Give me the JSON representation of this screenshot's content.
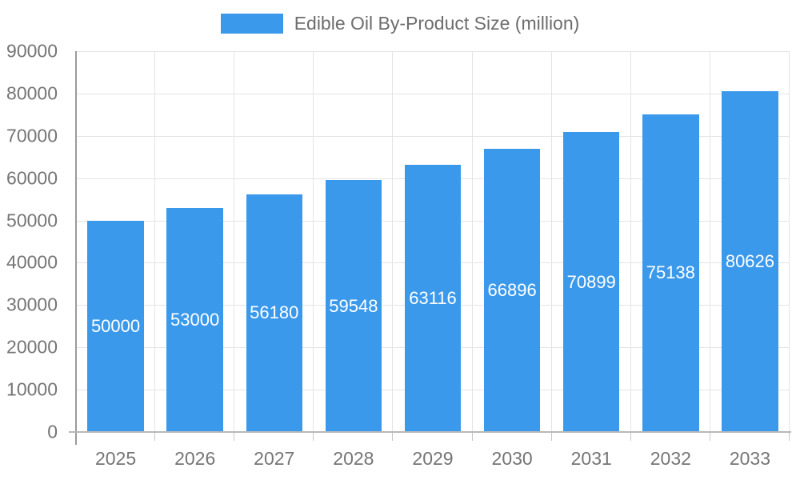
{
  "legend": {
    "label": "Edible Oil By-Product Size (million)"
  },
  "chart_data": {
    "type": "bar",
    "title": "Edible Oil By-Product Size (million)",
    "categories": [
      "2025",
      "2026",
      "2027",
      "2028",
      "2029",
      "2030",
      "2031",
      "2032",
      "2033"
    ],
    "values": [
      50000,
      53000,
      56180,
      59548,
      63116,
      66896,
      70899,
      75138,
      80626
    ],
    "xlabel": "",
    "ylabel": "",
    "ylim": [
      0,
      90000
    ],
    "ytick_step": 10000,
    "ytick_labels": [
      "0",
      "10000",
      "20000",
      "30000",
      "40000",
      "50000",
      "60000",
      "70000",
      "80000",
      "90000"
    ],
    "grid": true,
    "legend_position": "top",
    "bar_label_position": "center",
    "colors": {
      "bar": "#3b99ec",
      "bar_value_text": "#ffffff",
      "axis_text": "#757575",
      "legend_text": "#6d6d6d",
      "gridline": "#e3e3e3",
      "y_axis_line": "#9a9a9a",
      "x_axis_line": "#b8b8b8",
      "tick": "#c6c6c6",
      "background": "#ffffff"
    }
  }
}
